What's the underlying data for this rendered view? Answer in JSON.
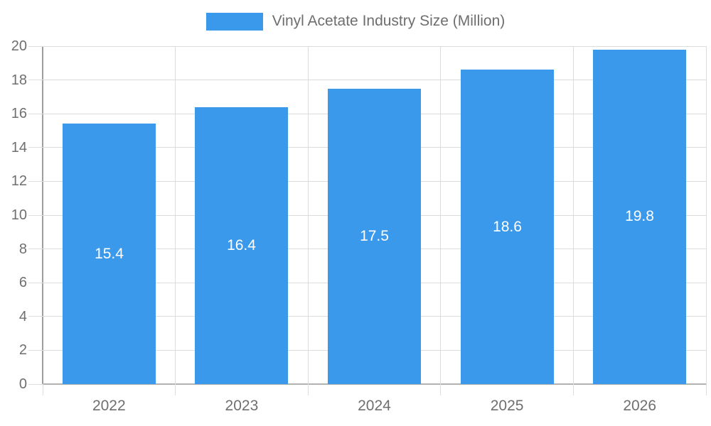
{
  "chart_data": {
    "type": "bar",
    "title": "",
    "legend": {
      "label": "Vinyl Acetate Industry Size (Million)",
      "position": "top"
    },
    "categories": [
      "2022",
      "2023",
      "2024",
      "2025",
      "2026"
    ],
    "values": [
      15.4,
      16.4,
      17.5,
      18.6,
      19.8
    ],
    "value_labels": [
      "15.4",
      "16.4",
      "17.5",
      "18.6",
      "19.8"
    ],
    "xlabel": "",
    "ylabel": "",
    "ylim": [
      0,
      20
    ],
    "y_ticks": [
      0,
      2,
      4,
      6,
      8,
      10,
      12,
      14,
      16,
      18,
      20
    ],
    "grid": true,
    "colors": {
      "bar": "#3b99ec",
      "grid": "#dcdcdc",
      "tick": "#dedede",
      "y_axis_line": "#9e9e9e",
      "baseline": "#b1b1b1",
      "axis_label_text": "#6f6f6f",
      "legend_text": "#6e6e6e",
      "value_label_text": "#ffffff",
      "background": "#ffffff"
    }
  }
}
